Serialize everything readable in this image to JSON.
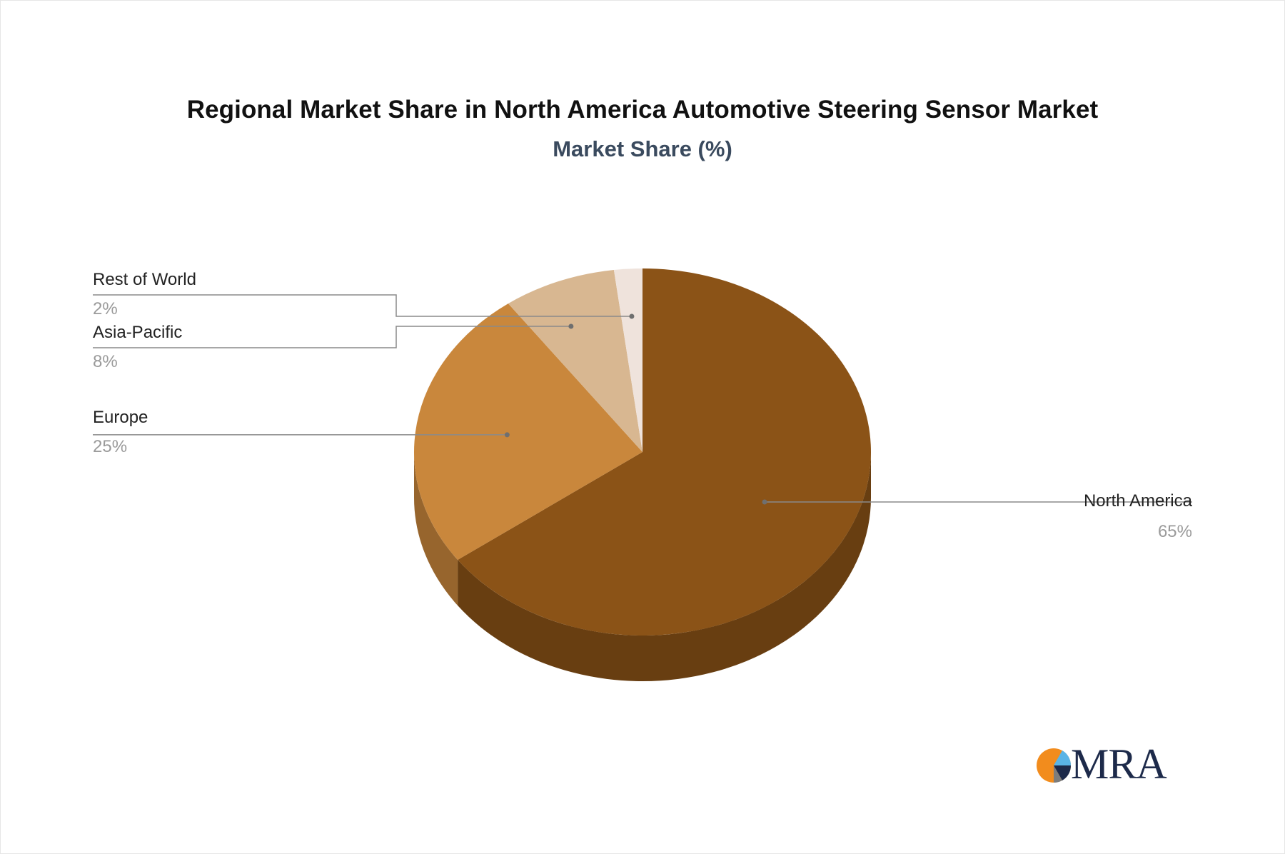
{
  "chart_data": {
    "type": "pie",
    "title": "Regional Market Share in North America Automotive Steering Sensor Market",
    "subtitle": "Market Share (%)",
    "slices": [
      {
        "name": "North America",
        "value": 65,
        "label": "65%",
        "color": "#8b5317"
      },
      {
        "name": "Europe",
        "value": 25,
        "label": "25%",
        "color": "#c9873c"
      },
      {
        "name": "Asia-Pacific",
        "value": 8,
        "label": "8%",
        "color": "#d8b791"
      },
      {
        "name": "Rest of World",
        "value": 2,
        "label": "2%",
        "color": "#efe3dc"
      }
    ]
  },
  "logo": {
    "text": "MRA",
    "colors": {
      "orange": "#f28c1d",
      "blue": "#5ab4e6",
      "navy": "#1d2a4a"
    }
  }
}
